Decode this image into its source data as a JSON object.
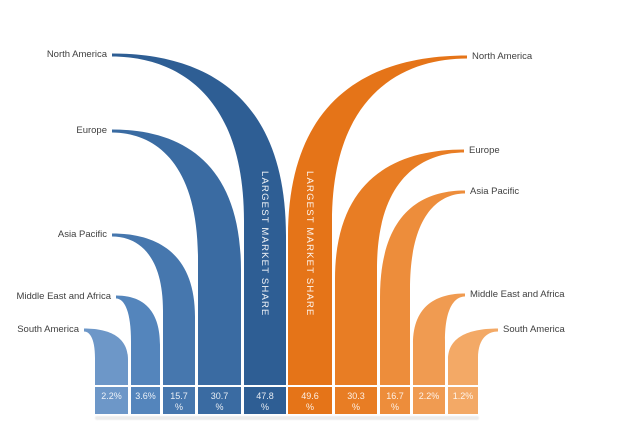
{
  "chart_data": {
    "type": "funnel",
    "title": "",
    "description": "Two mirrored market-share funnels (blue left set, orange right set) by region, with percentage band along the bottom",
    "center_labels": {
      "left": "LARGEST MARKET SHARE",
      "right": "LARGEST MARKET SHARE"
    },
    "legend_position": "none",
    "grid": false,
    "sides": [
      {
        "id": "left",
        "theme": "blue",
        "regions": [
          {
            "label": "North America",
            "value": 47.8,
            "display": "47.8\n%",
            "color": "#2e5e94"
          },
          {
            "label": "Europe",
            "value": 30.7,
            "display": "30.7\n%",
            "color": "#3a6ba2"
          },
          {
            "label": "Asia Pacific",
            "value": 15.7,
            "display": "15.7\n%",
            "color": "#4677ae"
          },
          {
            "label": "Middle East and Africa",
            "value": 3.6,
            "display": "3.6%",
            "color": "#5485bc"
          },
          {
            "label": "South America",
            "value": 2.2,
            "display": "2.2%",
            "color": "#6d97c8"
          }
        ]
      },
      {
        "id": "right",
        "theme": "orange",
        "regions": [
          {
            "label": "North America",
            "value": 49.6,
            "display": "49.6\n%",
            "color": "#e57418"
          },
          {
            "label": "Europe",
            "value": 30.3,
            "display": "30.3\n%",
            "color": "#e87d24"
          },
          {
            "label": "Asia Pacific",
            "value": 16.7,
            "display": "16.7\n%",
            "color": "#ed8d3b"
          },
          {
            "label": "Middle East and Africa",
            "value": 2.2,
            "display": "2.2%",
            "color": "#f09b51"
          },
          {
            "label": "South America",
            "value": 1.2,
            "display": "1.2%",
            "color": "#f3a966"
          }
        ]
      }
    ],
    "label_color": "#3f3f3f",
    "text_on_fill": "#ffffff"
  }
}
